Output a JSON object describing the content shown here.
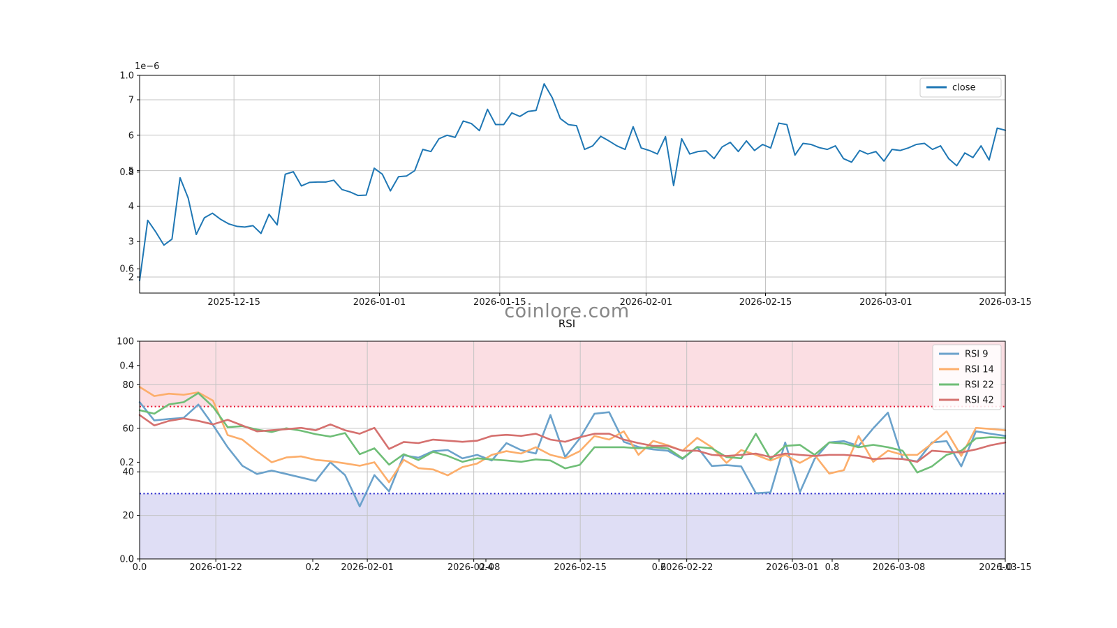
{
  "watermark": "coinlore.com",
  "background_axes": {
    "x_tick_labels": [
      "0.0",
      "0.2",
      "0.4",
      "0.6",
      "0.8",
      "1.0"
    ],
    "y_tick_labels": [
      "1.0",
      "0.8",
      "0.6",
      "0.4",
      "0.2",
      "0.0"
    ]
  },
  "chart_data": [
    {
      "type": "line",
      "title": "",
      "offset_label": "1e−6",
      "legend_position": "upper right",
      "grid": true,
      "ylim": [
        1.55,
        7.7
      ],
      "ylabel": "",
      "xlabel": "",
      "y_ticks": [
        2,
        3,
        4,
        5,
        6,
        7
      ],
      "x_ticks": [
        {
          "label": "2025-12-15",
          "f": 0.109
        },
        {
          "label": "2026-01-01",
          "f": 0.277
        },
        {
          "label": "2026-01-15",
          "f": 0.416
        },
        {
          "label": "2026-02-01",
          "f": 0.585
        },
        {
          "label": "2026-02-15",
          "f": 0.723
        },
        {
          "label": "2026-03-01",
          "f": 0.862
        },
        {
          "label": "2026-03-15",
          "f": 1.0
        }
      ],
      "series": [
        {
          "name": "close",
          "color": "#1f77b4",
          "unit_scale": "1e-6",
          "values": [
            1.9,
            3.6,
            3.27,
            2.9,
            3.07,
            4.8,
            4.23,
            3.2,
            3.67,
            3.8,
            3.63,
            3.5,
            3.43,
            3.41,
            3.45,
            3.23,
            3.77,
            3.47,
            4.9,
            4.97,
            4.57,
            4.67,
            4.68,
            4.68,
            4.73,
            4.47,
            4.4,
            4.3,
            4.31,
            5.07,
            4.9,
            4.43,
            4.83,
            4.85,
            5.0,
            5.6,
            5.54,
            5.9,
            6.0,
            5.94,
            6.4,
            6.33,
            6.13,
            6.73,
            6.3,
            6.3,
            6.63,
            6.53,
            6.67,
            6.7,
            7.45,
            7.06,
            6.47,
            6.3,
            6.27,
            5.6,
            5.7,
            5.97,
            5.84,
            5.7,
            5.6,
            6.24,
            5.64,
            5.57,
            5.47,
            5.96,
            4.58,
            5.9,
            5.47,
            5.54,
            5.56,
            5.34,
            5.67,
            5.8,
            5.54,
            5.84,
            5.57,
            5.74,
            5.64,
            6.34,
            6.3,
            5.44,
            5.77,
            5.74,
            5.65,
            5.6,
            5.7,
            5.34,
            5.24,
            5.57,
            5.47,
            5.54,
            5.27,
            5.6,
            5.57,
            5.64,
            5.74,
            5.77,
            5.6,
            5.7,
            5.34,
            5.14,
            5.5,
            5.37,
            5.7,
            5.3,
            6.2,
            6.14
          ]
        }
      ]
    },
    {
      "type": "line",
      "title": "RSI",
      "legend_position": "upper right",
      "grid": true,
      "ylim": [
        0,
        100
      ],
      "y_ticks": [
        0,
        20,
        40,
        60,
        80,
        100
      ],
      "x_ticks": [
        {
          "label": "2026-01-22",
          "f": 0.088
        },
        {
          "label": "2026-02-01",
          "f": 0.263
        },
        {
          "label": "2026-02-08",
          "f": 0.386
        },
        {
          "label": "2026-02-15",
          "f": 0.509
        },
        {
          "label": "2026-02-22",
          "f": 0.632
        },
        {
          "label": "2026-03-01",
          "f": 0.754
        },
        {
          "label": "2026-03-08",
          "f": 0.877
        },
        {
          "label": "2026-03-15",
          "f": 1.0
        }
      ],
      "overbought_level": 70,
      "oversold_level": 30,
      "bands": [
        {
          "from": 70,
          "to": 100,
          "color": "#fbdee3",
          "name": "overbought-band"
        },
        {
          "from": 0,
          "to": 30,
          "color": "#dfdef5",
          "name": "oversold-band"
        }
      ],
      "hlines": [
        {
          "y": 70,
          "color": "#e8102e",
          "style": "dotted",
          "name": "overbought-line"
        },
        {
          "y": 30,
          "color": "#2424cc",
          "style": "dotted",
          "name": "oversold-line"
        }
      ],
      "series": [
        {
          "name": "RSI 9",
          "color": "#6ba2cb",
          "values": [
            72,
            63.6,
            64.3,
            64.8,
            70.9,
            61.5,
            51.3,
            42.8,
            39,
            40.6,
            39,
            37.4,
            35.8,
            44.4,
            38.5,
            24.1,
            38.5,
            31,
            47.6,
            46.5,
            49.5,
            50,
            46.2,
            47.8,
            45.2,
            53.2,
            50,
            48.4,
            66.1,
            46.8,
            55.4,
            66.7,
            67.4,
            53.8,
            51.4,
            50.3,
            49.7,
            45.9,
            51.4,
            42.7,
            43.1,
            42.5,
            30.2,
            30.6,
            53.5,
            30.6,
            45.9,
            53.5,
            54.1,
            51.9,
            60,
            67.2,
            45.9,
            44.8,
            53.5,
            54.1,
            42.5,
            58.6,
            57.5,
            56.5
          ]
        },
        {
          "name": "RSI 14",
          "color": "#fcae6b",
          "values": [
            79,
            74.8,
            75.9,
            75.4,
            76.5,
            72.7,
            56.9,
            54.8,
            49.4,
            44.4,
            46.6,
            47.1,
            45.5,
            44.9,
            43.9,
            42.8,
            44.4,
            35.2,
            45.5,
            41.7,
            41.1,
            38.4,
            42.2,
            43.8,
            47.8,
            49.5,
            48.4,
            51.3,
            47.8,
            46.2,
            49.5,
            56.5,
            54.8,
            58.6,
            47.8,
            54.2,
            52.2,
            49.7,
            55.6,
            51.3,
            44.1,
            50,
            47.8,
            45.2,
            47.8,
            44.1,
            47.8,
            39.2,
            40.8,
            56.5,
            44.6,
            49.7,
            47.8,
            47.8,
            53,
            58.6,
            47.3,
            60.2,
            59.7,
            59.1
          ]
        },
        {
          "name": "RSI 22",
          "color": "#6fbe77",
          "values": [
            68.3,
            66.7,
            71,
            72,
            76.2,
            69.9,
            60.5,
            61,
            59.4,
            58.3,
            60,
            58.9,
            57.3,
            56.2,
            57.8,
            48.1,
            50.8,
            43.3,
            48.1,
            45.4,
            49.2,
            47.3,
            44.6,
            46.2,
            45.7,
            45.2,
            44.6,
            45.7,
            45.2,
            41.6,
            43.2,
            51.3,
            51.3,
            51.3,
            50.8,
            51.3,
            50.8,
            46.2,
            51.4,
            50.8,
            46.8,
            46.2,
            57.5,
            45.9,
            51.9,
            52.4,
            47.8,
            53.5,
            53,
            51.3,
            52.4,
            51.3,
            49.7,
            39.7,
            42.5,
            47.8,
            49.7,
            55.4,
            55.9,
            55.6
          ]
        },
        {
          "name": "RSI 42",
          "color": "#d5716f",
          "values": [
            66.1,
            61.3,
            63.4,
            64.5,
            63.4,
            61.8,
            63.9,
            61.3,
            58.6,
            59.1,
            59.6,
            60.2,
            59.1,
            61.8,
            59.1,
            57.5,
            60.2,
            50.5,
            53.7,
            53.2,
            54.8,
            54.3,
            53.8,
            54.3,
            56.5,
            57,
            56.5,
            57.5,
            54.8,
            53.8,
            55.9,
            57.5,
            57.5,
            54.8,
            53.2,
            51.9,
            51.9,
            49.7,
            49.7,
            47.8,
            47.3,
            47.8,
            48.4,
            46.8,
            48.4,
            47.8,
            47.3,
            47.8,
            47.8,
            47.3,
            45.9,
            46.2,
            45.9,
            44.6,
            49.7,
            49.2,
            48.9,
            50.3,
            52.2,
            53.5
          ]
        }
      ]
    }
  ]
}
